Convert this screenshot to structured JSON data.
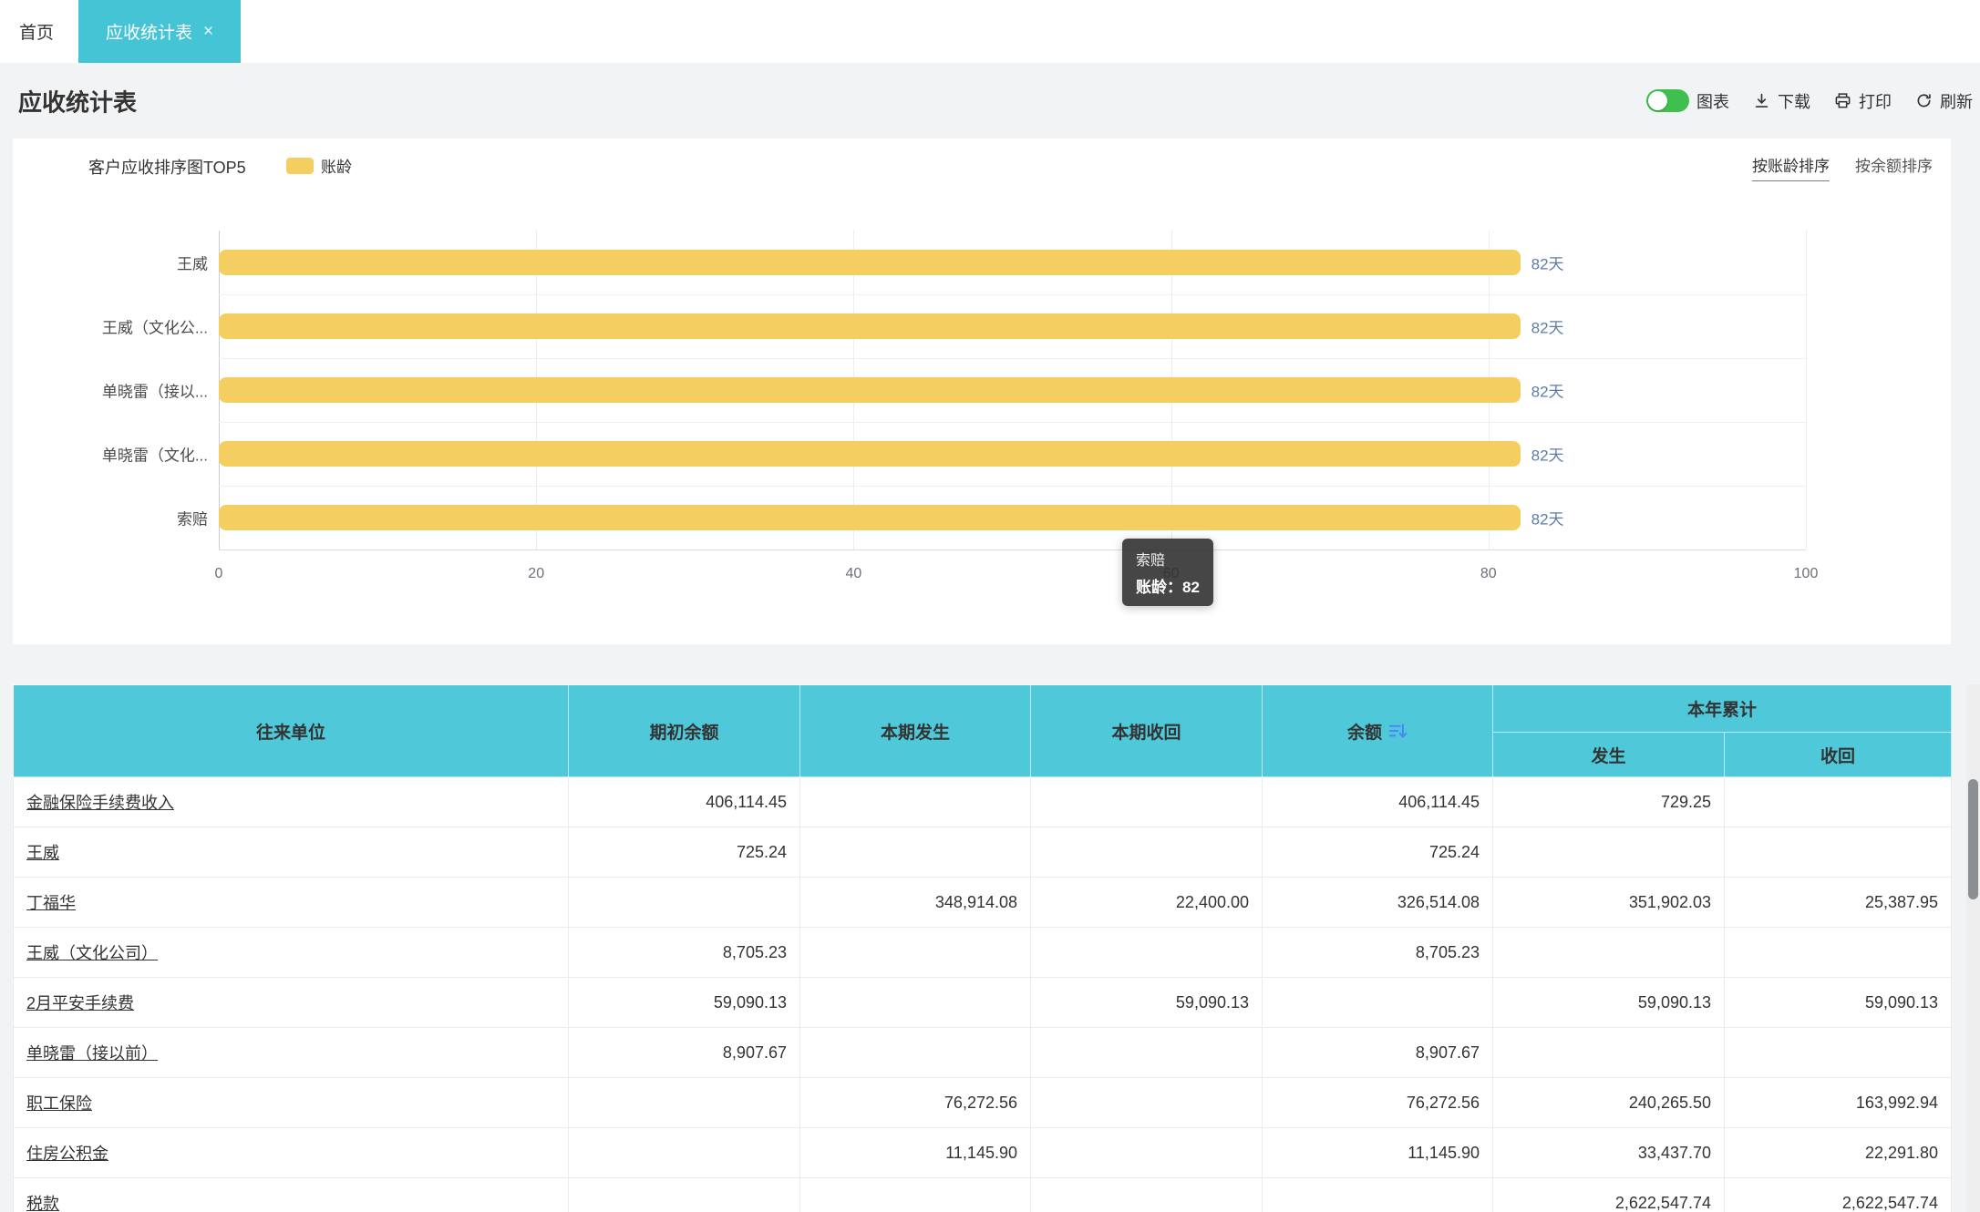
{
  "colors": {
    "accent": "#45c4d6",
    "bar": "#f5ce62",
    "table_header_bg": "#4fc8d9",
    "toggle_on": "#3fbf4e",
    "sort_icon": "#4a86f5"
  },
  "tabs": {
    "home": "首页",
    "active": "应收统计表",
    "close": "×"
  },
  "toolbar": {
    "title": "应收统计表",
    "toggle_label": "图表",
    "download": "下载",
    "print": "打印",
    "refresh": "刷新"
  },
  "chart": {
    "title": "客户应收排序图TOP5",
    "legend": "账龄",
    "sort_age": "按账龄排序",
    "sort_balance": "按余额排序"
  },
  "chart_data": {
    "type": "bar",
    "orientation": "horizontal",
    "title": "客户应收排序图TOP5",
    "legend": [
      "账龄"
    ],
    "categories": [
      "王威",
      "王威（文化公...",
      "单晓雷（接以...",
      "单晓雷（文化...",
      "索赔"
    ],
    "series": [
      {
        "name": "账龄",
        "values": [
          82,
          82,
          82,
          82,
          82
        ]
      }
    ],
    "bar_labels": [
      "82天",
      "82天",
      "82天",
      "82天",
      "82天"
    ],
    "xlim": [
      0,
      100
    ],
    "xticks": [
      0,
      20,
      40,
      60,
      80,
      100
    ],
    "grid": true,
    "tooltip": {
      "lines": [
        "索赔",
        "账龄：82"
      ]
    }
  },
  "table": {
    "headers": {
      "unit": "往来单位",
      "opening_balance": "期初余额",
      "period_incurred": "本期发生",
      "period_recovered": "本期收回",
      "balance": "余额",
      "ytd": "本年累计",
      "ytd_incurred": "发生",
      "ytd_recovered": "收回"
    },
    "rows": [
      {
        "name": "金融保险手续费收入",
        "values": [
          "406,114.45",
          "",
          "",
          "406,114.45",
          "729.25",
          ""
        ]
      },
      {
        "name": "王威",
        "values": [
          "725.24",
          "",
          "",
          "725.24",
          "",
          ""
        ]
      },
      {
        "name": "丁福华",
        "values": [
          "",
          "348,914.08",
          "22,400.00",
          "326,514.08",
          "351,902.03",
          "25,387.95"
        ]
      },
      {
        "name": "王威（文化公司）",
        "values": [
          "8,705.23",
          "",
          "",
          "8,705.23",
          "",
          ""
        ]
      },
      {
        "name": "2月平安手续费",
        "values": [
          "59,090.13",
          "",
          "59,090.13",
          "",
          "59,090.13",
          "59,090.13"
        ]
      },
      {
        "name": "单晓雷（接以前）",
        "values": [
          "8,907.67",
          "",
          "",
          "8,907.67",
          "",
          ""
        ]
      },
      {
        "name": "职工保险",
        "values": [
          "",
          "76,272.56",
          "",
          "76,272.56",
          "240,265.50",
          "163,992.94"
        ]
      },
      {
        "name": "住房公积金",
        "values": [
          "",
          "11,145.90",
          "",
          "11,145.90",
          "33,437.70",
          "22,291.80"
        ]
      },
      {
        "name": "税款",
        "values": [
          "",
          "",
          "",
          "",
          "2,622,547.74",
          "2,622,547.74"
        ]
      }
    ]
  }
}
